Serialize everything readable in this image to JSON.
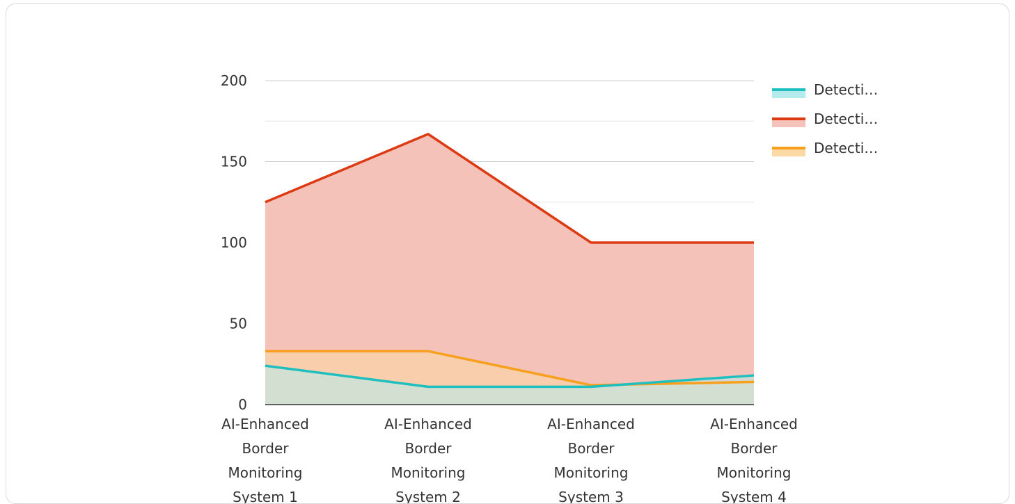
{
  "chart_data": {
    "type": "area",
    "title": "",
    "xlabel": "",
    "ylabel": "",
    "categories": [
      [
        "AI-Enhanced",
        "Border",
        "Monitoring",
        "System 1"
      ],
      [
        "AI-Enhanced",
        "Border",
        "Monitoring",
        "System 2"
      ],
      [
        "AI-Enhanced",
        "Border",
        "Monitoring",
        "System 3"
      ],
      [
        "AI-Enhanced",
        "Border",
        "Monitoring",
        "System 4"
      ]
    ],
    "ylim": [
      0,
      200
    ],
    "yticks": [
      0,
      50,
      100,
      150,
      200
    ],
    "minor_gridlines": [
      25,
      75,
      125,
      175
    ],
    "grid": true,
    "legend_position": "top-right",
    "series": [
      {
        "name": "Detecti…",
        "values": [
          125,
          167,
          100,
          100
        ],
        "line_color": "#dc3a12",
        "fill_color": "#f4c2b8"
      },
      {
        "name": "Detecti…",
        "values": [
          33,
          33,
          12,
          14
        ],
        "line_color": "#f7a01e",
        "fill_color": "#fbd9a4"
      },
      {
        "name": "Detecti…",
        "values": [
          24,
          11,
          11,
          18
        ],
        "line_color": "#1fbfbf",
        "fill_color": "#b4ecec"
      }
    ],
    "legend_order": [
      2,
      0,
      1
    ]
  }
}
